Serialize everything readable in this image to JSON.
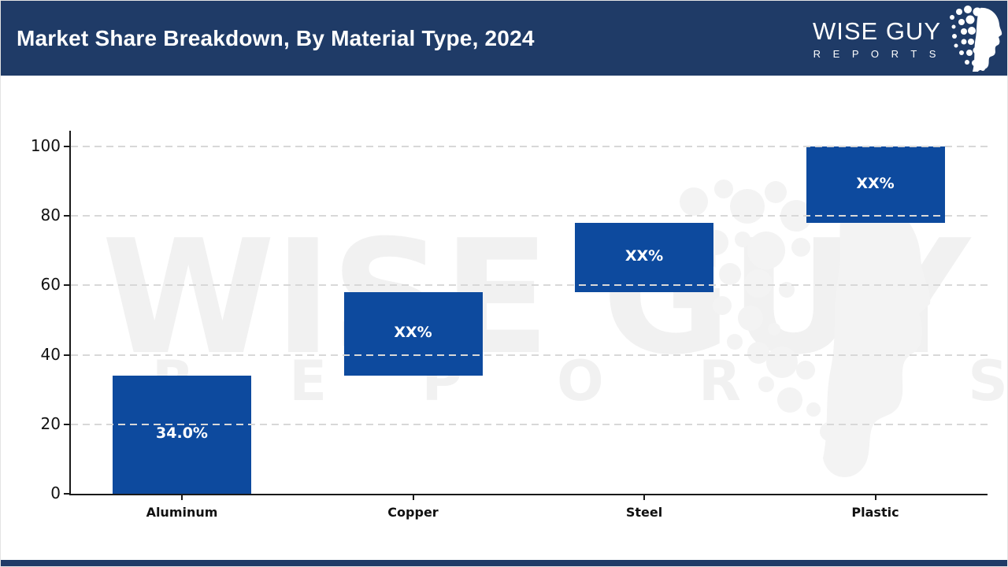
{
  "header": {
    "title": "Market Share Breakdown, By Material Type, 2024",
    "logo": {
      "name": "WISE GUY",
      "tagline": "R E P O R T S"
    }
  },
  "watermark": {
    "line1": "WISE GUY",
    "line2": "R E P O R T S"
  },
  "chart_data": {
    "type": "bar",
    "subtype": "waterfall",
    "title": "Market Share Breakdown, By Material Type, 2024",
    "categories": [
      "Aluminum",
      "Copper",
      "Steel",
      "Plastic"
    ],
    "series": [
      {
        "name": "Market share (%)",
        "segments": [
          {
            "category": "Aluminum",
            "start": 0,
            "end": 34,
            "value": 34,
            "label": "34.0%"
          },
          {
            "category": "Copper",
            "start": 34,
            "end": 58,
            "value": 24,
            "label": "XX%"
          },
          {
            "category": "Steel",
            "start": 58,
            "end": 78,
            "value": 20,
            "label": "XX%"
          },
          {
            "category": "Plastic",
            "start": 78,
            "end": 100,
            "value": 22,
            "label": "XX%"
          }
        ]
      }
    ],
    "xlabel": "",
    "ylabel": "",
    "ylim": [
      0,
      100
    ],
    "yticks": [
      0,
      20,
      40,
      60,
      80,
      100
    ],
    "grid": {
      "horizontal": true,
      "style": "dashed"
    },
    "legend": "none",
    "bar_color": "#0d4a9e",
    "bar_label_color": "#ffffff",
    "axis_color": "#1a1a1a",
    "grid_color": "#d8d8d8"
  },
  "colors": {
    "header_bg": "#1f3b67",
    "footer_bg": "#1f3b67",
    "watermark": "#f1f1f1",
    "background": "#ffffff"
  }
}
